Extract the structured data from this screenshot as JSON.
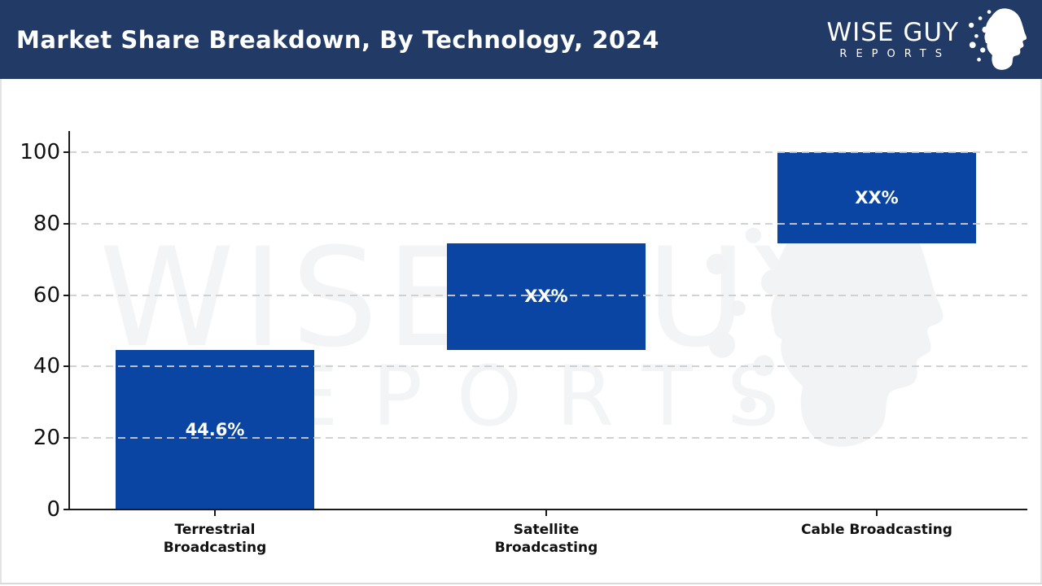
{
  "header": {
    "title": "Market Share Breakdown, By Technology, 2024",
    "bg_color": "#223a66",
    "logo": {
      "line1": "WISE GUY",
      "line2": "REPORTS"
    }
  },
  "watermark": {
    "line1": "WISE GUY",
    "line2": "REPORTS"
  },
  "chart_data": {
    "type": "bar",
    "subtype": "waterfall-stacked-range",
    "title": "Market Share Breakdown, By Technology, 2024",
    "xlabel": "",
    "ylabel": "",
    "categories": [
      "Terrestrial\nBroadcasting",
      "Satellite\nBroadcasting",
      "Cable Broadcasting"
    ],
    "segments": [
      {
        "category": "Terrestrial Broadcasting",
        "start": 0,
        "end": 44.6,
        "span": 44.6,
        "label": "44.6%"
      },
      {
        "category": "Satellite Broadcasting",
        "start": 44.6,
        "end": 74.6,
        "span": 30.0,
        "label": "XX%"
      },
      {
        "category": "Cable Broadcasting",
        "start": 74.6,
        "end": 100,
        "span": 25.4,
        "label": "XX%"
      }
    ],
    "y_ticks": [
      0,
      20,
      40,
      60,
      80,
      100
    ],
    "ylim": [
      0,
      106
    ],
    "grid": "horizontal-dashed",
    "legend": "none",
    "bar_color": "#0b45a3",
    "grid_color": "#d0d0d0",
    "axis_color": "#1a1a1a"
  }
}
